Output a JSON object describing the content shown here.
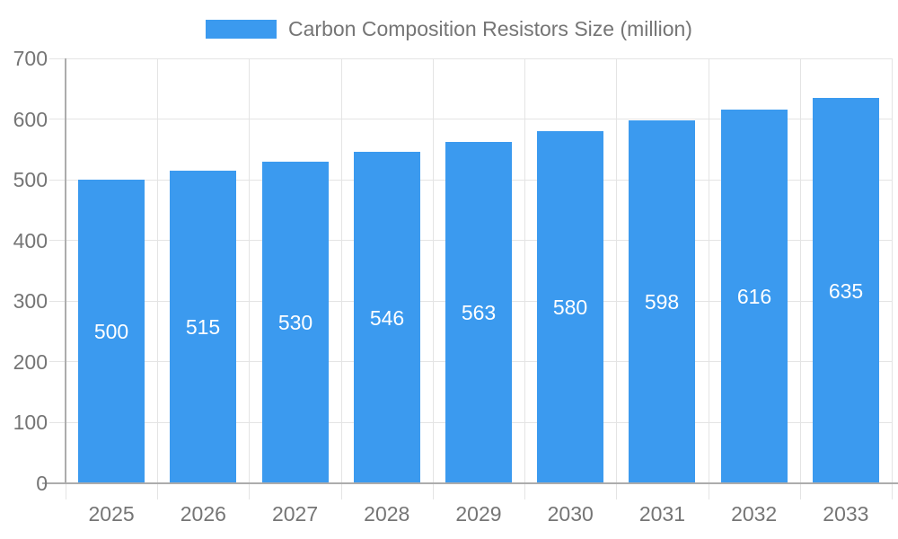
{
  "colors": {
    "bar": "#3B9AEF",
    "grid": "#E4E4E4",
    "axis": "#ACACAC",
    "text": "#757575",
    "value_text": "#FFFFFF",
    "background": "#FFFFFF"
  },
  "legend": {
    "label": "Carbon Composition Resistors Size (million)"
  },
  "chart_data": {
    "type": "bar",
    "title": "Carbon Composition Resistors Size (million)",
    "categories": [
      "2025",
      "2026",
      "2027",
      "2028",
      "2029",
      "2030",
      "2031",
      "2032",
      "2033"
    ],
    "values": [
      500,
      515,
      530,
      546,
      563,
      580,
      598,
      616,
      635
    ],
    "xlabel": "",
    "ylabel": "",
    "ylim": [
      0,
      700
    ],
    "ytick_step": 100,
    "yticks": [
      0,
      100,
      200,
      300,
      400,
      500,
      600,
      700
    ],
    "grid": "horizontal-and-category-boundaries",
    "legend_position": "top-center",
    "bar_labels": "inside-center-white"
  }
}
